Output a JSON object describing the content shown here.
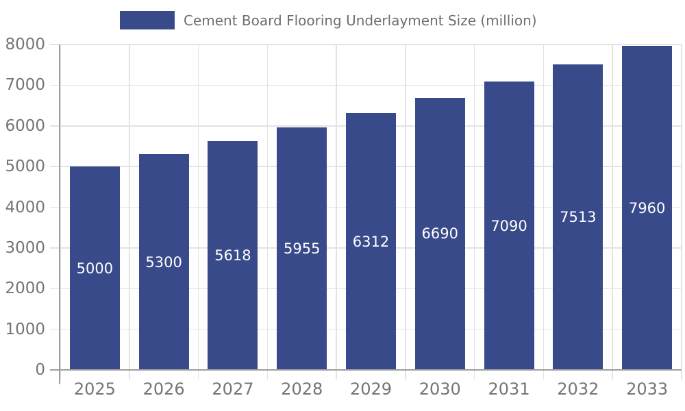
{
  "chart_data": {
    "type": "bar",
    "title": "Cement Board Flooring Underlayment Size (million)",
    "categories": [
      "2025",
      "2026",
      "2027",
      "2028",
      "2029",
      "2030",
      "2031",
      "2032",
      "2033"
    ],
    "values": [
      5000,
      5300,
      5618,
      5955,
      6312,
      6690,
      7090,
      7513,
      7960
    ],
    "xlabel": "",
    "ylabel": "",
    "ylim": [
      0,
      8000
    ],
    "ytick_step": 1000,
    "grid": true,
    "legend_position": "top",
    "value_labels": "inside-center",
    "colors": {
      "bar": "#394A8A",
      "value_text": "#FFFFFF",
      "axis_line": "#9E9E9E",
      "grid_line": "#E3E3E3",
      "tick_text": "#757575",
      "legend_text": "#6E6E6E",
      "background": "#FFFFFF"
    }
  }
}
